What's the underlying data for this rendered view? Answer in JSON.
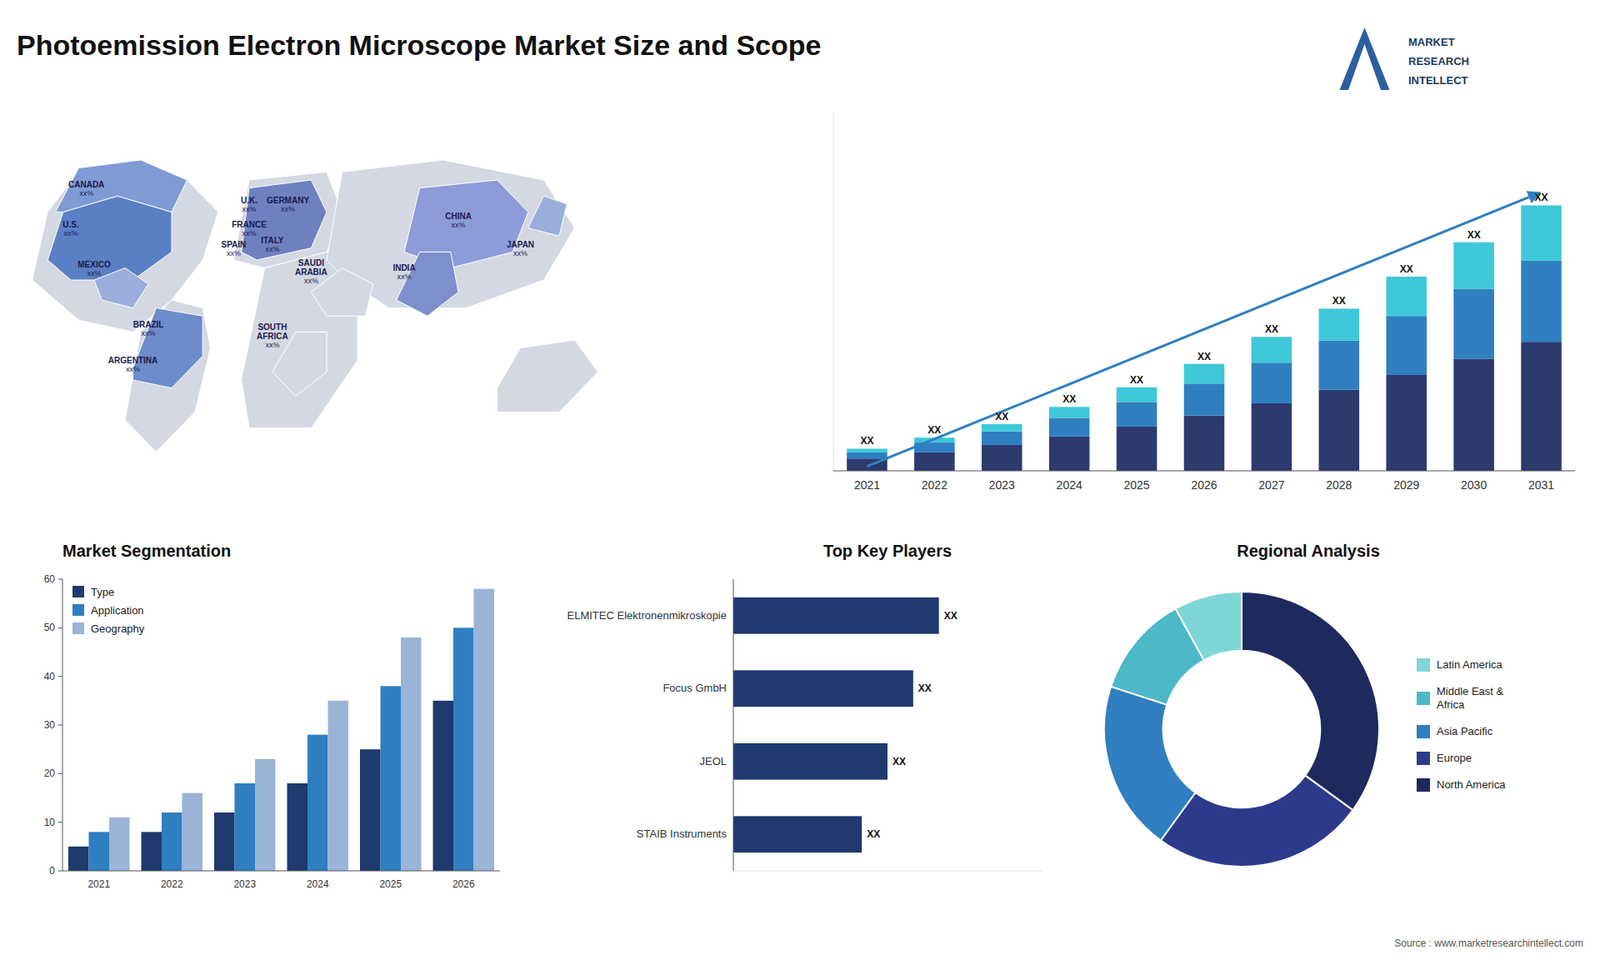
{
  "chart_data": [
    {
      "type": "map",
      "regions": [
        {
          "name": "CANADA",
          "label": "xx%"
        },
        {
          "name": "U.S.",
          "label": "xx%"
        },
        {
          "name": "MEXICO",
          "label": "xx%"
        },
        {
          "name": "BRAZIL",
          "label": "xx%"
        },
        {
          "name": "ARGENTINA",
          "label": "xx%"
        },
        {
          "name": "U.K.",
          "label": "xx%"
        },
        {
          "name": "FRANCE",
          "label": "xx%"
        },
        {
          "name": "SPAIN",
          "label": "xx%"
        },
        {
          "name": "GERMANY",
          "label": "xx%"
        },
        {
          "name": "ITALY",
          "label": "xx%"
        },
        {
          "name": "SAUDI\nARABIA",
          "label": "xx%"
        },
        {
          "name": "SOUTH\nAFRICA",
          "label": "xx%"
        },
        {
          "name": "CHINA",
          "label": "xx%"
        },
        {
          "name": "JAPAN",
          "label": "xx%"
        },
        {
          "name": "INDIA",
          "label": "xx%"
        }
      ]
    },
    {
      "type": "bar",
      "title": "Photoemission Electron Microscope Market Size and Scope",
      "stacked": true,
      "categories": [
        "2021",
        "2022",
        "2023",
        "2024",
        "2025",
        "2026",
        "2027",
        "2028",
        "2029",
        "2030",
        "2031"
      ],
      "series": [
        {
          "color": "#2d3a6e",
          "values": [
            1,
            1.5,
            2.1,
            2.8,
            3.6,
            4.5,
            5.5,
            6.6,
            7.8,
            9.1,
            10.5
          ]
        },
        {
          "color": "#2f7fc1",
          "values": [
            0.5,
            0.8,
            1.1,
            1.5,
            2.0,
            2.6,
            3.3,
            4.0,
            4.8,
            5.7,
            6.6
          ]
        },
        {
          "color": "#3ec8d8",
          "values": [
            0.3,
            0.4,
            0.6,
            0.9,
            1.2,
            1.6,
            2.1,
            2.6,
            3.2,
            3.8,
            4.5
          ]
        }
      ],
      "ylim": [
        0,
        29.16
      ],
      "tick_labels": "x",
      "annotations": [
        "XX",
        "XX",
        "XX",
        "XX",
        "XX",
        "XX",
        "XX",
        "XX",
        "XX",
        "XX",
        "XX"
      ]
    },
    {
      "type": "bar",
      "title": "Market Segmentation",
      "categories": [
        "2021",
        "2022",
        "2023",
        "2024",
        "2025",
        "2026"
      ],
      "series": [
        {
          "name": "Type",
          "color": "#1e3a6e",
          "values": [
            5,
            8,
            12,
            18,
            25,
            35
          ]
        },
        {
          "name": "Application",
          "color": "#2f7fc1",
          "values": [
            8,
            12,
            18,
            28,
            38,
            50
          ]
        },
        {
          "name": "Geography",
          "color": "#9ab4d8",
          "values": [
            11,
            16,
            23,
            35,
            48,
            58
          ]
        }
      ],
      "ylim": [
        0,
        60
      ],
      "yticks": [
        0,
        10,
        20,
        30,
        40,
        50,
        60
      ],
      "legend": "upper left",
      "grid": false
    },
    {
      "type": "bar",
      "title": "Top Key Players",
      "orientation": "horizontal",
      "categories": [
        "STAIB Instruments",
        "JEOL",
        "Focus GmbH",
        "ELMITEC Elektronenmikroskopie"
      ],
      "values": [
        5,
        6,
        7,
        8
      ],
      "color": "#1e3a6e",
      "xlim": [
        0,
        12
      ],
      "tick_labels": "y",
      "annotations": [
        "XX",
        "XX",
        "XX",
        "XX"
      ]
    },
    {
      "type": "pie",
      "title": "Regional Analysis",
      "categories": [
        "Latin America",
        "Middle East &\nAfrica",
        "Asia Pacific",
        "Europe",
        "North America"
      ],
      "values": [
        8,
        12,
        20,
        25,
        35
      ],
      "colors": [
        "#7fd6d6",
        "#4db8c8",
        "#2f7fc1",
        "#2d3a8c",
        "#1e2a5e"
      ],
      "legend": "right"
    }
  ],
  "source": "Source : www.marketresearchintellect.com",
  "logo": [
    "MARKET",
    "RESEARCH",
    "INTELLECT"
  ]
}
